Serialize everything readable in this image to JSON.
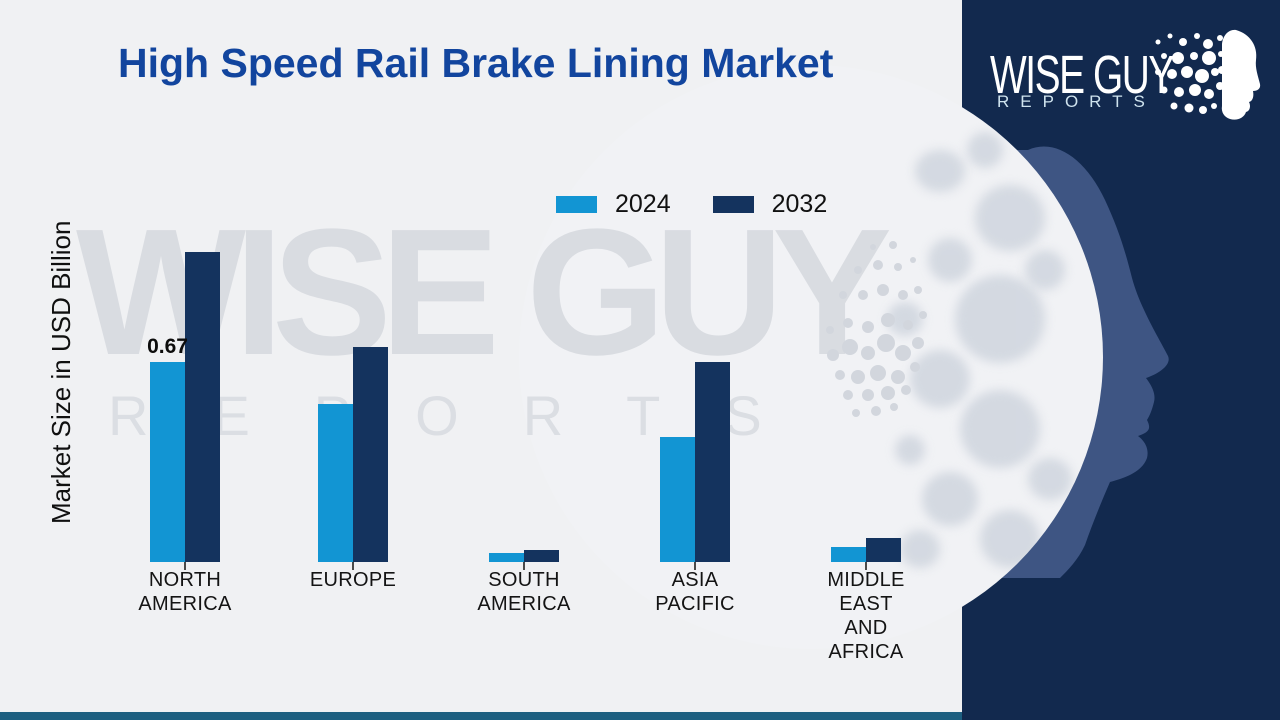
{
  "page": {
    "title": "High Speed Rail Brake Lining Market"
  },
  "logo": {
    "brand": "WISE GUY",
    "sub": "REPORTS"
  },
  "watermark": {
    "brand": "WISE GUY",
    "sub": "REPORTS"
  },
  "theme": {
    "title_color": "#12459e",
    "panel_navy": "#12294e",
    "face_blue": "#3e5583",
    "footer_teal": "#1d5f80",
    "background": "#f0f1f3",
    "watermark_gray": "#d9dce1",
    "bar_2024": "#1295d3",
    "bar_2032": "#14335e"
  },
  "chart_data": {
    "type": "bar",
    "title": "High Speed Rail Brake Lining Market",
    "ylabel": "Market Size in USD Billion",
    "xlabel": "",
    "unit": "USD Billion",
    "grid": false,
    "legend_position": "top",
    "ylim": [
      0,
      1.1
    ],
    "categories": [
      "NORTH\nAMERICA",
      "EUROPE",
      "SOUTH\nAMERICA",
      "ASIA\nPACIFIC",
      "MIDDLE\nEAST\nAND\nAFRICA"
    ],
    "series": [
      {
        "name": "2024",
        "color": "#1295d3",
        "values": [
          0.67,
          0.53,
          0.03,
          0.42,
          0.05
        ]
      },
      {
        "name": "2032",
        "color": "#14335e",
        "values": [
          1.04,
          0.72,
          0.04,
          0.67,
          0.08
        ]
      }
    ],
    "value_labels": [
      {
        "series_index": 0,
        "category_index": 0,
        "text": "0.67"
      }
    ]
  }
}
